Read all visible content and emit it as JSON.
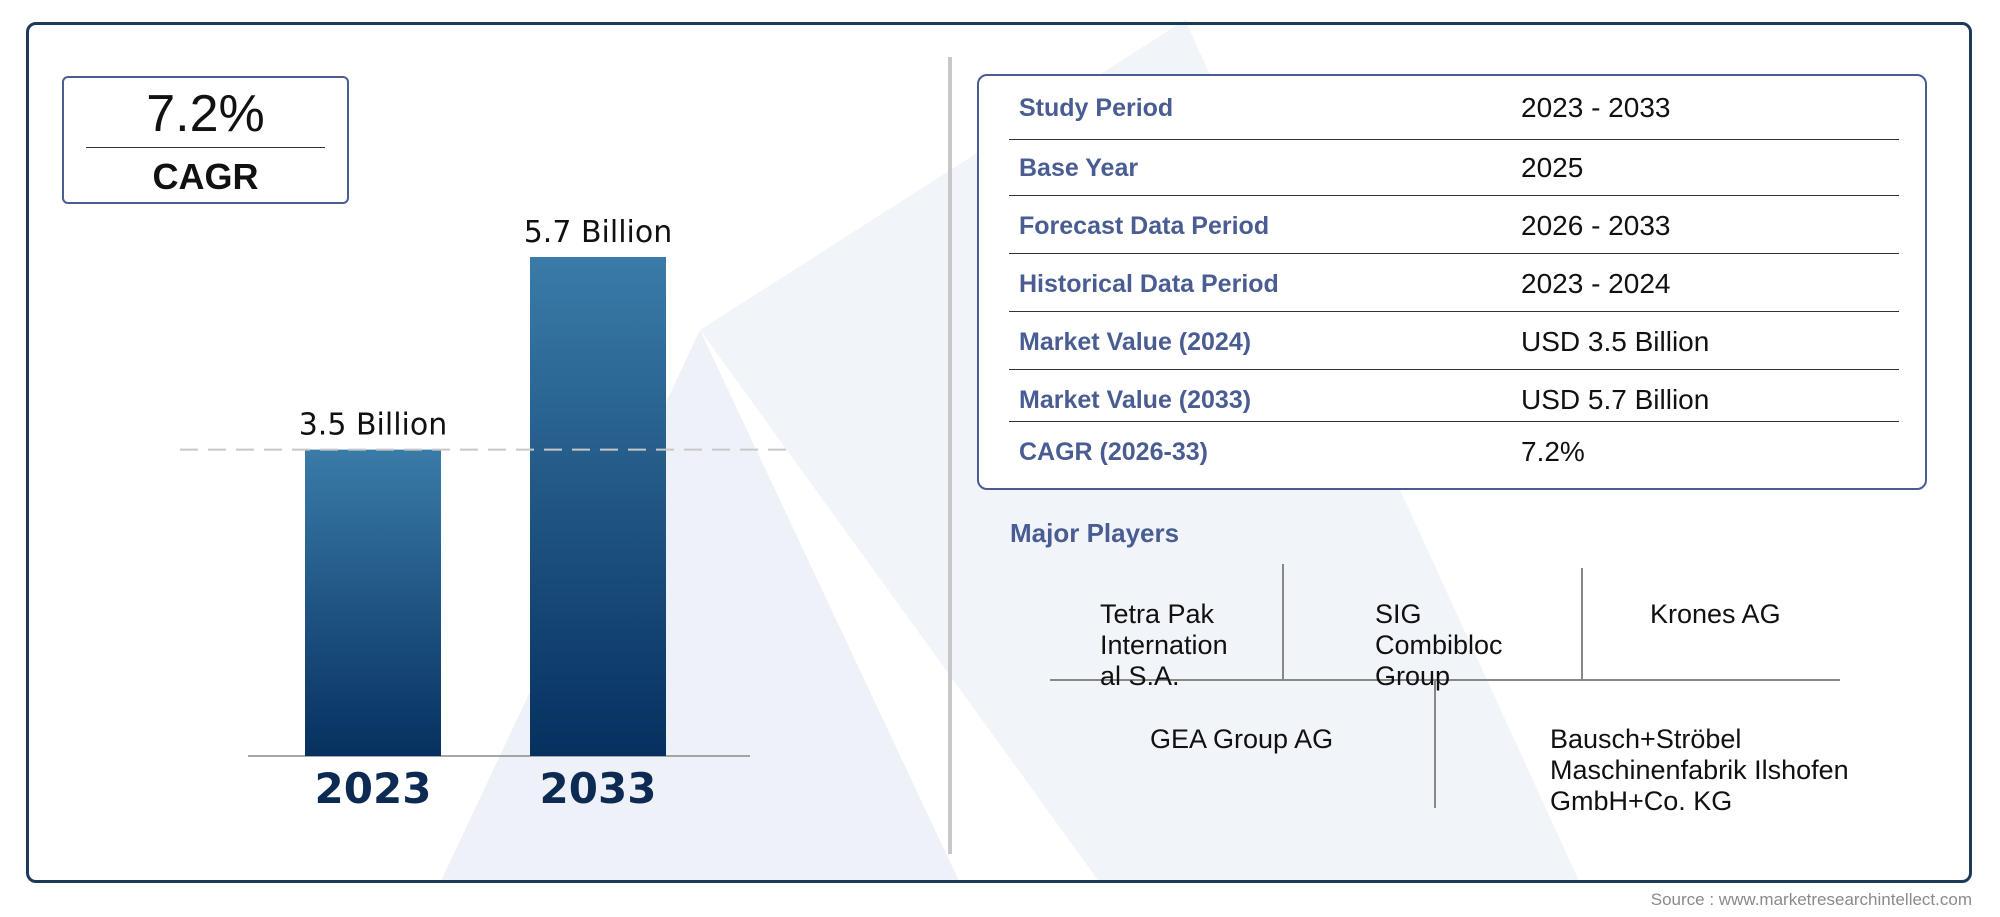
{
  "cagr_box": {
    "value": "7.2%",
    "label": "CAGR"
  },
  "chart_data": {
    "type": "bar",
    "categories": [
      "2023",
      "2033"
    ],
    "values": [
      3.5,
      5.7
    ],
    "data_labels": [
      "3.5 Billion",
      "5.7 Billion"
    ],
    "title": "",
    "xlabel": "",
    "ylabel": "",
    "ylim": [
      0,
      6.5
    ],
    "grid": false,
    "reference_line": 3.5,
    "colors": {
      "bar_top": "#3a7ba8",
      "bar_bottom": "#06305f",
      "tick_label": "#0d2b52"
    }
  },
  "info_table": [
    {
      "key": "Study Period",
      "value": "2023 - 2033"
    },
    {
      "key": "Base Year",
      "value": "2025"
    },
    {
      "key": "Forecast Data Period",
      "value": "2026 - 2033"
    },
    {
      "key": "Historical Data Period",
      "value": "2023 - 2024"
    },
    {
      "key": "Market Value (2024)",
      "value": "USD 3.5 Billion"
    },
    {
      "key": "Market Value (2033)",
      "value": "USD 5.7 Billion"
    },
    {
      "key": "CAGR (2026-33)",
      "value": "7.2%"
    }
  ],
  "players": {
    "title": "Major Players",
    "items": [
      "Tetra Pak\nInternation\nal S.A.",
      "SIG\nCombibloc\nGroup",
      "Krones AG",
      "GEA Group AG",
      "Bausch+Ströbel\nMaschinenfabrik Ilshofen\nGmbH+Co. KG"
    ]
  },
  "source": "Source : www.marketresearchintellect.com",
  "colors": {
    "accent": "#4a5d92",
    "frame": "#1d3a5c"
  }
}
